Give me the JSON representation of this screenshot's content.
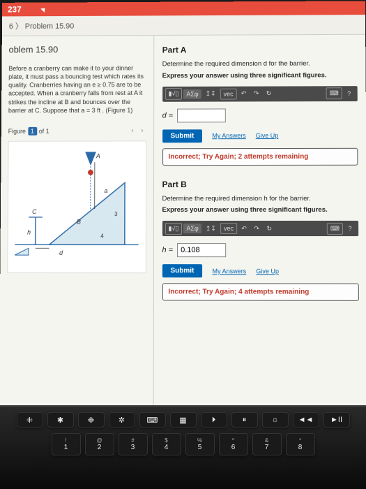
{
  "topbar": {
    "count": "237"
  },
  "breadcrumb": {
    "step": "6",
    "label": "Problem 15.90"
  },
  "left": {
    "title": "oblem 15.90",
    "text1": "Before a cranberry can make it to your dinner plate, it must pass a bouncing test which rates its quality. Cranberries having an e ≥ 0.75 are to be accepted. When a cranberry falls from rest at A it strikes the incline at B and bounces over the barrier at C. Suppose that a = 3 ft . (Figure 1)",
    "figure_label": "Figure",
    "figure_num": "1",
    "figure_of": "of 1"
  },
  "partA": {
    "title": "Part A",
    "desc": "Determine the required dimension d for the barrier.",
    "instr": "Express your answer using three significant figures.",
    "var": "d =",
    "value": "",
    "submit": "Submit",
    "link1": "My Answers",
    "link2": "Give Up",
    "feedback": "Incorrect; Try Again; 2 attempts remaining"
  },
  "partB": {
    "title": "Part B",
    "desc": "Determine the required dimension h for the barrier.",
    "instr": "Express your answer using three significant figures.",
    "var": "h =",
    "value": "0.108",
    "submit": "Submit",
    "link1": "My Answers",
    "link2": "Give Up",
    "feedback": "Incorrect; Try Again; 4 attempts remaining"
  },
  "toolbar": {
    "t1": "▮√▯",
    "t2": "ΑΣφ",
    "t3": "↥↧",
    "t4": "vec",
    "t5": "↶",
    "t6": "↷",
    "t7": "↻",
    "t8": "⌨",
    "t9": "?"
  },
  "keys": {
    "fnrow": [
      "⁜",
      "✱",
      "❉",
      "✲",
      "⌨",
      "▦",
      "⏵",
      "⏸",
      "☼",
      "◄◄",
      "►II"
    ],
    "numrow": [
      {
        "t": "!",
        "b": "1"
      },
      {
        "t": "@",
        "b": "2"
      },
      {
        "t": "#",
        "b": "3"
      },
      {
        "t": "$",
        "b": "4"
      },
      {
        "t": "%",
        "b": "5"
      },
      {
        "t": "^",
        "b": "6"
      },
      {
        "t": "&",
        "b": "7"
      },
      {
        "t": "*",
        "b": "8"
      }
    ]
  },
  "colors": {
    "red": "#e74c3c",
    "blue": "#0066b3",
    "toolbar_bg": "#4a4a4a",
    "feedback_red": "#c0392b"
  }
}
